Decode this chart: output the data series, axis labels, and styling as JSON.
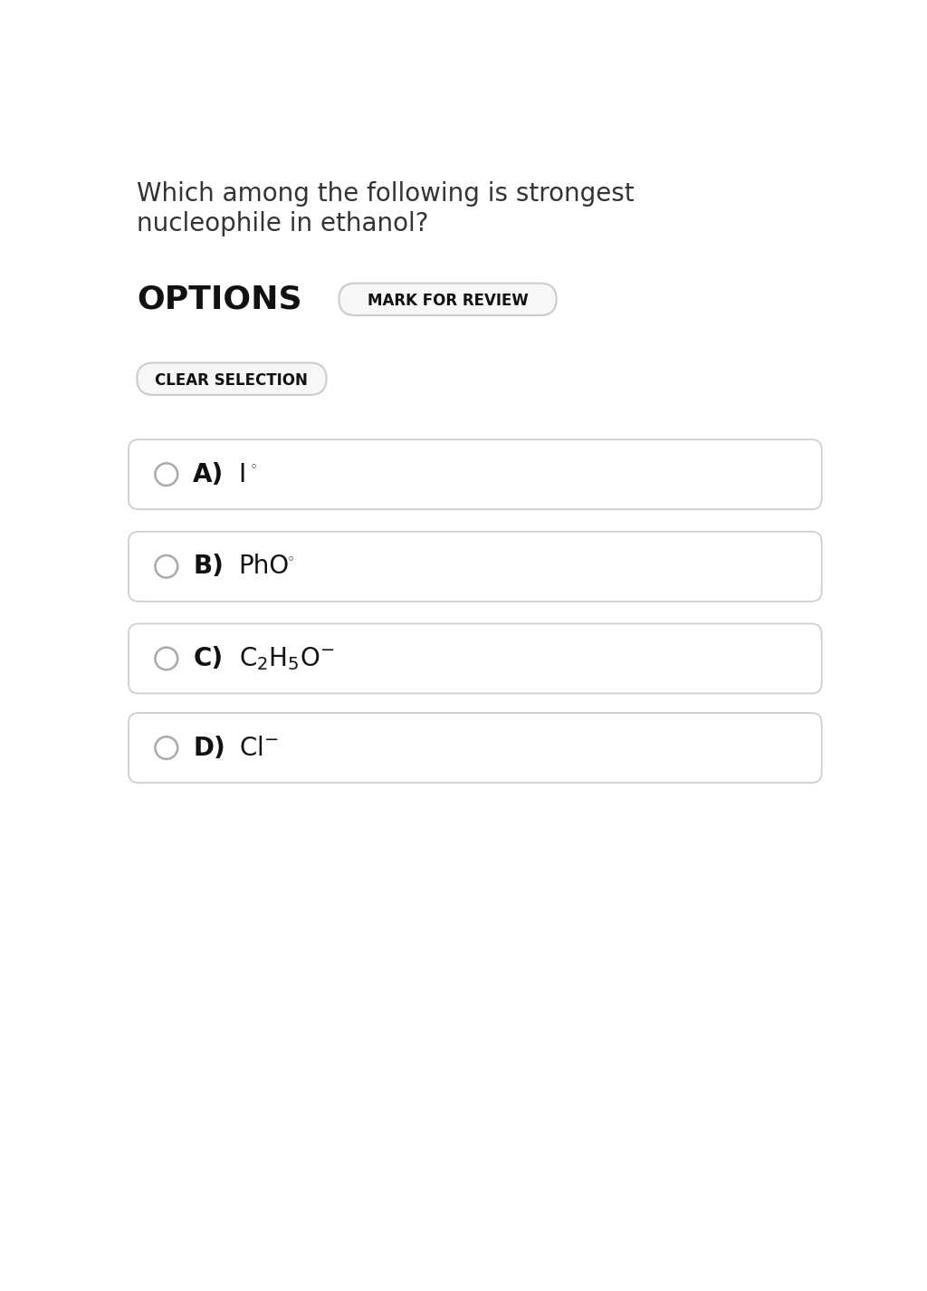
{
  "background_color": "#ffffff",
  "question_text_line1": "Which among the following is strongest",
  "question_text_line2": "nucleophile in ethanol?",
  "question_font_size": 20,
  "question_color": "#333333",
  "options_label": "OPTIONS",
  "options_label_fontsize": 26,
  "mark_for_review_text": "MARK FOR REVIEW",
  "mark_for_review_fontsize": 12,
  "clear_selection_text": "CLEAR SELECTION",
  "clear_selection_fontsize": 12,
  "option_box_facecolor": "#ffffff",
  "option_box_edgecolor": "#cccccc",
  "button_facecolor": "#f7f7f7",
  "button_edgecolor": "#cccccc",
  "radio_edgecolor": "#aaaaaa",
  "text_color": "#111111",
  "option_label_fontsize": 20,
  "option_content_fontsize": 20
}
